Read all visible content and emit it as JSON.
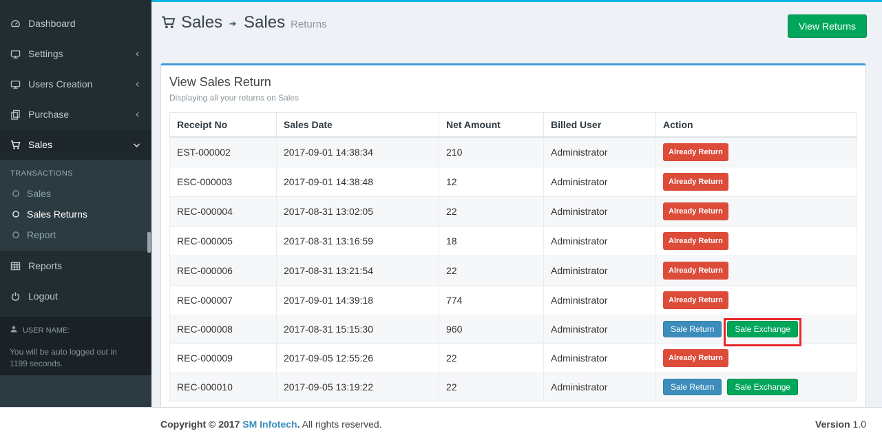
{
  "sidebar": {
    "items": [
      {
        "label": "Dashboard"
      },
      {
        "label": "Settings"
      },
      {
        "label": "Users Creation"
      },
      {
        "label": "Purchase"
      },
      {
        "label": "Sales"
      }
    ],
    "transactions_header": "TRANSACTIONS",
    "submenu": [
      {
        "label": "Sales"
      },
      {
        "label": "Sales Returns"
      },
      {
        "label": "Report"
      }
    ],
    "reports": {
      "label": "Reports"
    },
    "logout": {
      "label": "Logout"
    },
    "user_panel": {
      "user_label": "USER NAME:",
      "logout_notice": "You will be auto logged out in 1199 seconds."
    }
  },
  "header": {
    "breadcrumb": {
      "section": "Sales",
      "page": "Sales",
      "page_qualifier": "Returns"
    },
    "view_returns_button": "View Returns"
  },
  "card": {
    "title": "View Sales Return",
    "subtitle": "Displaying all your returns on Sales"
  },
  "table": {
    "columns": [
      "Receipt No",
      "Sales Date",
      "Net Amount",
      "Billed User",
      "Action"
    ],
    "action_labels": {
      "already_return": "Already Return",
      "sale_return": "Sale Return",
      "sale_exchange": "Sale Exchange"
    },
    "rows": [
      {
        "receipt_no": "EST-000002",
        "sales_date": "2017-09-01 14:38:34",
        "net_amount": "210",
        "billed_user": "Administrator",
        "action": "already_return"
      },
      {
        "receipt_no": "ESC-000003",
        "sales_date": "2017-09-01 14:38:48",
        "net_amount": "12",
        "billed_user": "Administrator",
        "action": "already_return"
      },
      {
        "receipt_no": "REC-000004",
        "sales_date": "2017-08-31 13:02:05",
        "net_amount": "22",
        "billed_user": "Administrator",
        "action": "already_return"
      },
      {
        "receipt_no": "REC-000005",
        "sales_date": "2017-08-31 13:16:59",
        "net_amount": "18",
        "billed_user": "Administrator",
        "action": "already_return"
      },
      {
        "receipt_no": "REC-000006",
        "sales_date": "2017-08-31 13:21:54",
        "net_amount": "22",
        "billed_user": "Administrator",
        "action": "already_return"
      },
      {
        "receipt_no": "REC-000007",
        "sales_date": "2017-09-01 14:39:18",
        "net_amount": "774",
        "billed_user": "Administrator",
        "action": "already_return"
      },
      {
        "receipt_no": "REC-000008",
        "sales_date": "2017-08-31 15:15:30",
        "net_amount": "960",
        "billed_user": "Administrator",
        "action": "return_exchange",
        "exchange_highlighted": true
      },
      {
        "receipt_no": "REC-000009",
        "sales_date": "2017-09-05 12:55:26",
        "net_amount": "22",
        "billed_user": "Administrator",
        "action": "already_return"
      },
      {
        "receipt_no": "REC-000010",
        "sales_date": "2017-09-05 13:19:22",
        "net_amount": "22",
        "billed_user": "Administrator",
        "action": "return_exchange"
      }
    ]
  },
  "footer": {
    "copyright_bold": "Copyright © 2017",
    "company": "SM Infotech",
    "after_company": ".",
    "rights_text": "All rights reserved.",
    "version_label": "Version",
    "version_value": "1.0"
  },
  "colors": {
    "top_strip": "#00b4e5",
    "card_accent": "#3c9bd8",
    "success_green": "#00a65a",
    "danger_red": "#dd4b39",
    "primary_blue": "#3c8dbc",
    "highlight_red": "#e8272c"
  }
}
